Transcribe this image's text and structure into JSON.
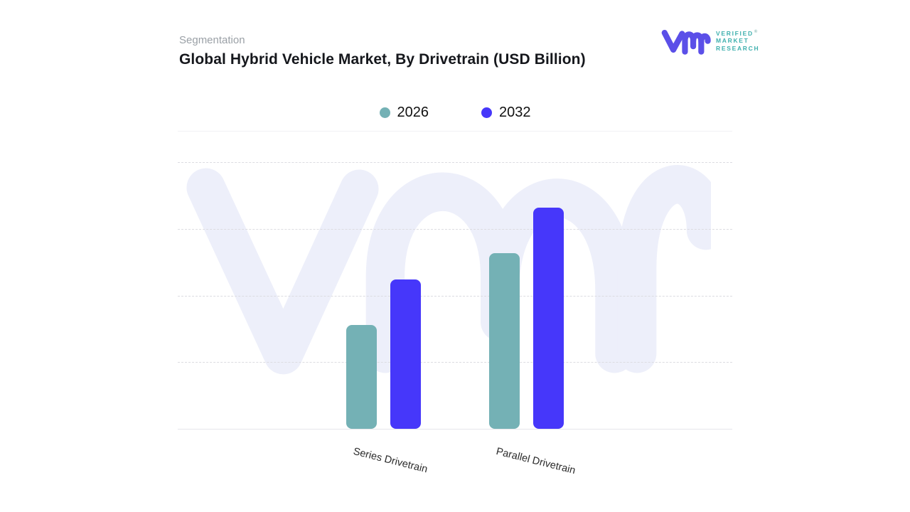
{
  "header": {
    "eyebrow": "Segmentation",
    "title": "Global Hybrid Vehicle Market, By Drivetrain (USD Billion)"
  },
  "logo": {
    "line1": "VERIFIED",
    "registered": "®",
    "line2": "MARKET",
    "line3": "RESEARCH",
    "mark_color": "#5b4fe8",
    "text_color": "#3fb0ae"
  },
  "watermark": {
    "icon": "vmr-monogram",
    "color": "#edeffa"
  },
  "chart_data": {
    "type": "bar",
    "title": "Global Hybrid Vehicle Market, By Drivetrain (USD Billion)",
    "units": "USD Billion",
    "categories": [
      "Series Drivetrain",
      "Parallel Drivetrain"
    ],
    "series": [
      {
        "name": "2026",
        "color": "#74b1b5",
        "values": [
          39,
          66
        ]
      },
      {
        "name": "2032",
        "color": "#4637fa",
        "values": [
          56,
          83
        ]
      }
    ],
    "xlabel": "",
    "ylabel": "",
    "ylim": [
      0,
      100
    ],
    "gridline_step": 25,
    "grid": "dashed-horizontal",
    "y_tick_labels_visible": false,
    "legend_position": "top-center",
    "value_note": "y-axis has no tick labels; values estimated from gridlines (top gridline = 100)"
  }
}
